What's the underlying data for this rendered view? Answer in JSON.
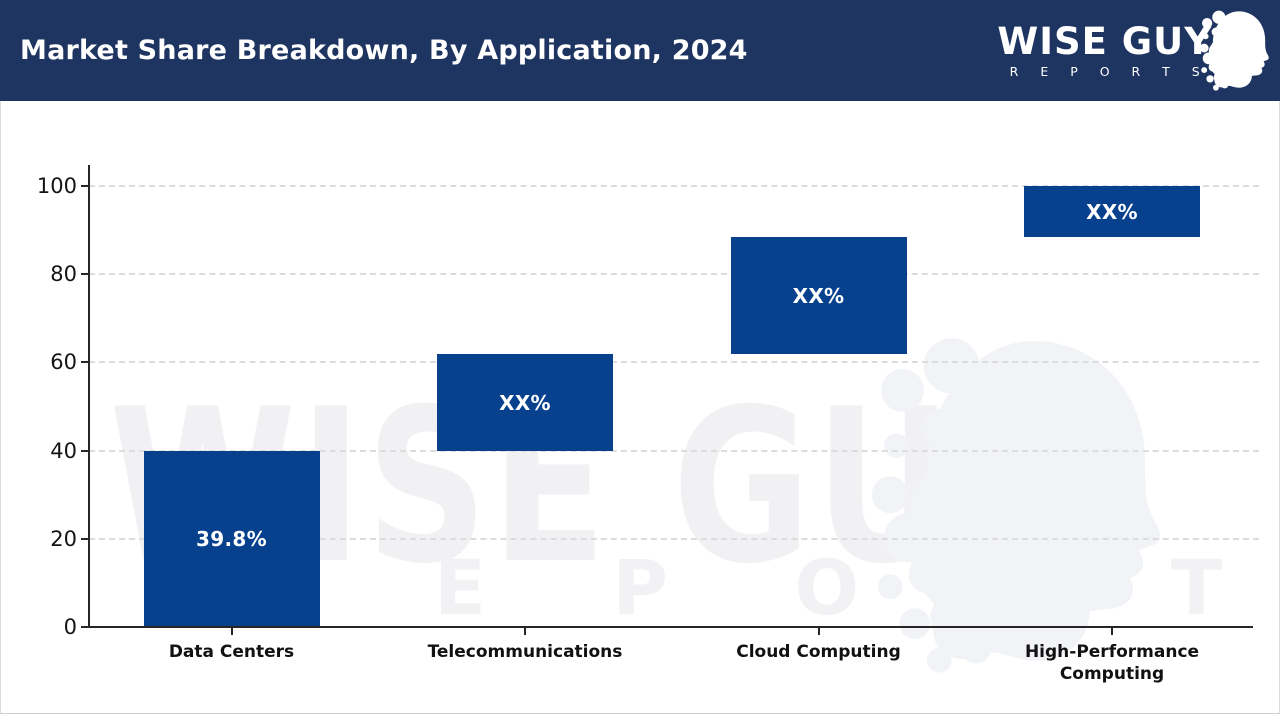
{
  "header": {
    "title": "Market Share Breakdown, By Application, 2024",
    "logo_brand": "WISE GUY",
    "logo_sub": "R E P O R T S"
  },
  "watermark": {
    "line1": "WISE GUY",
    "line2": "R E P O R T S"
  },
  "chart_data": {
    "type": "bar",
    "subtype": "waterfall",
    "title": "Market Share Breakdown, By Application, 2024",
    "categories": [
      "Data Centers",
      "Telecommunications",
      "Cloud Computing",
      "High-Performance Computing"
    ],
    "segments": [
      {
        "category": "Data Centers",
        "start": 0,
        "end": 39.8,
        "label": "39.8%"
      },
      {
        "category": "Telecommunications",
        "start": 39.8,
        "end": 61.8,
        "label": "XX%"
      },
      {
        "category": "Cloud Computing",
        "start": 61.8,
        "end": 88.4,
        "label": "XX%"
      },
      {
        "category": "High-Performance Computing",
        "start": 88.4,
        "end": 100,
        "label": "XX%"
      }
    ],
    "y_ticks": [
      0,
      20,
      40,
      60,
      80,
      100
    ],
    "ylim": [
      0,
      100
    ],
    "xlabel": "",
    "ylabel": "",
    "grid": "horizontal-dashed",
    "legend": "none",
    "bar_color": "#07418e",
    "bar_label_color": "#ffffff"
  },
  "colors": {
    "header_bg": "#1e3461",
    "bar": "#07418e",
    "watermark": "#f1f1f4",
    "grid": "#dcdcdc",
    "axis": "#262626"
  }
}
